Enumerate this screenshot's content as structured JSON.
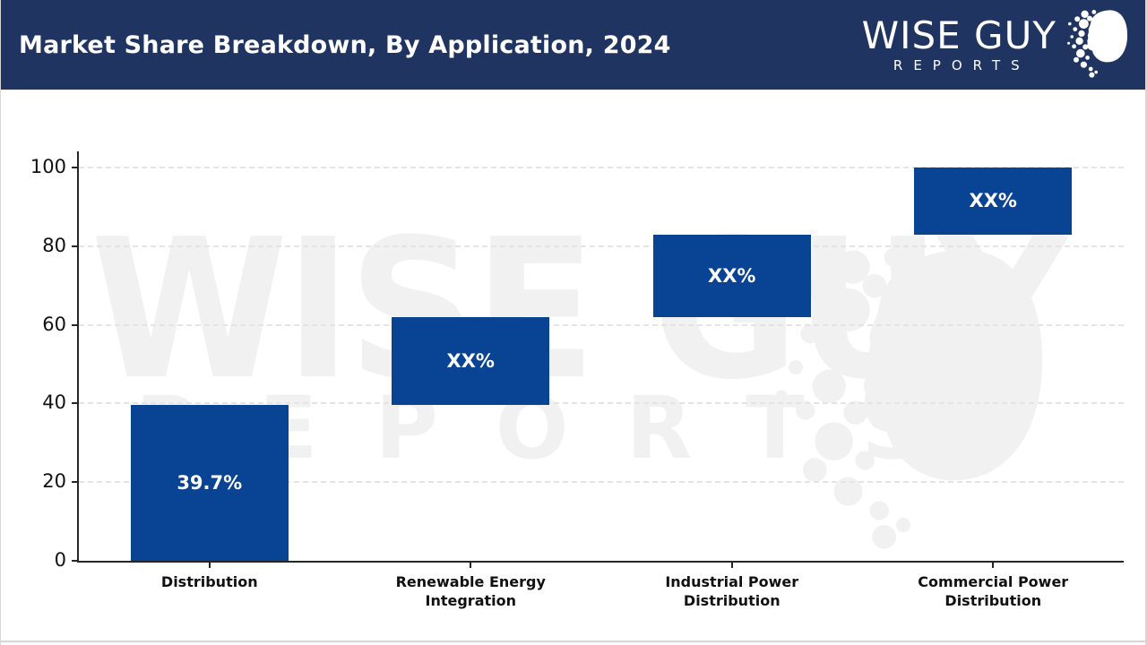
{
  "header": {
    "title": "Market Share Breakdown, By Application, 2024",
    "bg_color": "#203461",
    "logo": {
      "line1": "WISE GUY",
      "line2": "REPORTS",
      "icon": "dotted-face-profile-icon"
    }
  },
  "watermark": {
    "line1": "WISE GUY",
    "line2": "REPORTS",
    "icon": "dotted-face-profile-icon",
    "color": "#f1f1f2"
  },
  "chart_data": {
    "type": "bar",
    "variant": "waterfall",
    "title": "Market Share Breakdown, By Application, 2024",
    "categories": [
      "Distribution",
      "Renewable Energy Integration",
      "Industrial Power Distribution",
      "Commercial Power Distribution"
    ],
    "segments": [
      {
        "category": "Distribution",
        "start": 0,
        "end": 39.7,
        "label": "39.7%"
      },
      {
        "category": "Renewable Energy Integration",
        "start": 39.7,
        "end": 62,
        "label": "XX%"
      },
      {
        "category": "Industrial Power Distribution",
        "start": 62,
        "end": 83,
        "label": "XX%"
      },
      {
        "category": "Commercial Power Distribution",
        "start": 83,
        "end": 100,
        "label": "XX%"
      }
    ],
    "xlabel": "",
    "ylabel": "",
    "yticks": [
      0,
      20,
      40,
      60,
      80,
      100
    ],
    "ylim": [
      0,
      104
    ],
    "grid": "horizontal-dashed",
    "legend": "none",
    "bar_color": "#084394",
    "bar_label_color": "#ffffff",
    "axis_color": "#262626",
    "gridline_color": "#e4e4e4"
  }
}
